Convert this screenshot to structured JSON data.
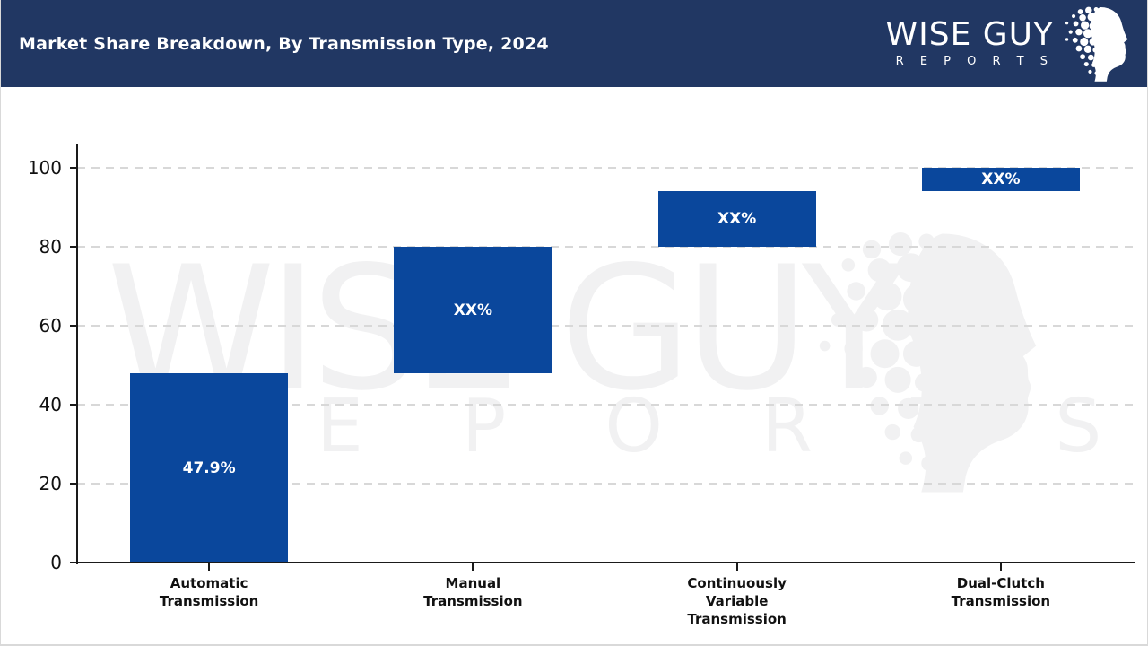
{
  "header": {
    "title": "Market Share Breakdown, By Transmission Type, 2024",
    "bg_color": "#213763",
    "logo": {
      "line1": "WISE GUY",
      "line2": "R E P O R T S"
    }
  },
  "watermark": {
    "line1": "WISE GUY",
    "line2": "R E P O R T S"
  },
  "chart_data": {
    "type": "bar",
    "subtype": "waterfall",
    "title": "Market Share Breakdown, By Transmission Type, 2024",
    "xlabel": "",
    "ylabel": "",
    "categories": [
      "Automatic\nTransmission",
      "Manual\nTransmission",
      "Continuously\nVariable\nTransmission",
      "Dual-Clutch\nTransmission"
    ],
    "bars": [
      {
        "start": 0,
        "end": 47.9,
        "label": "47.9%"
      },
      {
        "start": 47.9,
        "end": 79.9,
        "label": "XX%"
      },
      {
        "start": 79.9,
        "end": 94.2,
        "label": "XX%"
      },
      {
        "start": 94.2,
        "end": 100,
        "label": "XX%"
      }
    ],
    "yticks": [
      0,
      20,
      40,
      60,
      80,
      100
    ],
    "ylim": [
      0,
      106
    ],
    "grid": "dashed-horizontal",
    "legend": "none",
    "bar_color": "#0a479c",
    "bar_label_color": "#ffffff",
    "grid_color": "#d8d8d8",
    "axis_color": "#1a1a1a"
  }
}
